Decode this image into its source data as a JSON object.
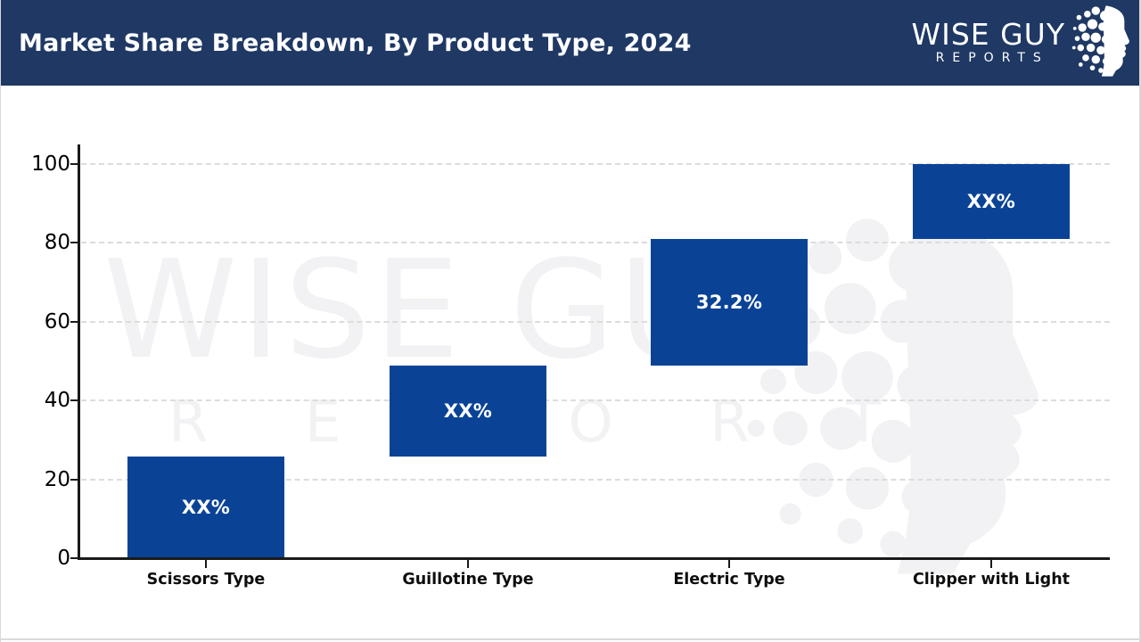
{
  "header": {
    "title": "Market Share Breakdown, By Product Type, 2024",
    "bg_color": "#1f3864",
    "logo": {
      "wordmark": "WISE GUY",
      "subtext": "REPORTS"
    }
  },
  "watermark": {
    "line1": "WISE GUY",
    "line2": "R E P O R T S"
  },
  "colors": {
    "bar": "#0a4396",
    "axis": "#1a1a1a",
    "grid": "#dcdcdc",
    "watermark": "#f2f2f4"
  },
  "chart_data": {
    "type": "bar",
    "subtype": "floating-waterfall",
    "title": "Market Share Breakdown, By Product Type, 2024",
    "categories": [
      "Scissors Type",
      "Guillotine Type",
      "Electric Type",
      "Clipper with Light"
    ],
    "segments": [
      [
        0,
        25.8
      ],
      [
        25.8,
        48.8
      ],
      [
        48.8,
        81.0
      ],
      [
        81.0,
        100
      ]
    ],
    "values": [
      25.8,
      23.0,
      32.2,
      19.0
    ],
    "bar_labels": [
      "XX%",
      "XX%",
      "32.2%",
      "XX%"
    ],
    "yticks": [
      0,
      20,
      40,
      60,
      80,
      100
    ],
    "ylim": [
      0,
      100
    ],
    "xlabel": "",
    "ylabel": "",
    "grid": "horizontal-dashed",
    "legend": "none",
    "bar_color": "#0a4396"
  }
}
